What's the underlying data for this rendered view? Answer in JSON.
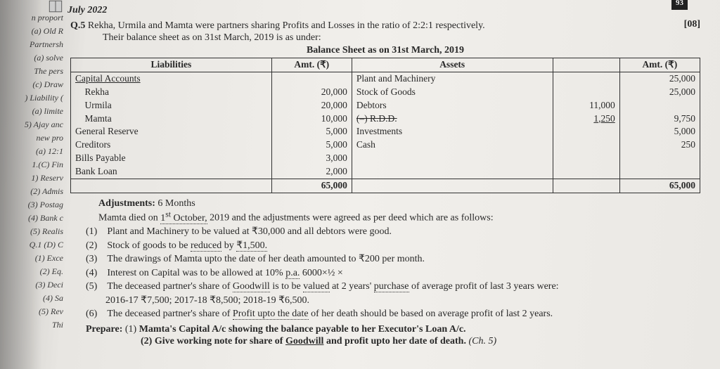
{
  "header": {
    "date": "July 2022",
    "badge": "93",
    "marks": "[08]"
  },
  "question": {
    "num": "Q.5",
    "text_a": "Rekha, Urmila and Mamta were partners sharing Profits and Losses in the ratio of 2:2:1 respectively.",
    "text_b": "Their balance sheet as on 31st March, 2019 is as under:",
    "bs_title": "Balance Sheet as on 31st March, 2019"
  },
  "table": {
    "head": {
      "liab": "Liabilities",
      "amt": "Amt. (₹)",
      "assets": "Assets",
      "amt2": "Amt. (₹)"
    },
    "rows": [
      {
        "l": "Capital Accounts",
        "la": "",
        "a": "Plant and Machinery",
        "aa": "25,000"
      },
      {
        "l": "    Rekha",
        "la": "20,000",
        "a": "Stock of Goods",
        "aa": "25,000"
      },
      {
        "l": "    Urmila",
        "la": "20,000",
        "a": "Debtors",
        "aa_pre": "11,000",
        "aa": ""
      },
      {
        "l": "    Mamta",
        "la": "10,000",
        "a": "(–) R.D.D.",
        "aa_pre": "1,250",
        "aa": "9,750"
      },
      {
        "l": "General Reserve",
        "la": "5,000",
        "a": "Investments",
        "aa": "5,000"
      },
      {
        "l": "Creditors",
        "la": "5,000",
        "a": "Cash",
        "aa": "250"
      },
      {
        "l": "Bills Payable",
        "la": "3,000",
        "a": "",
        "aa": ""
      },
      {
        "l": "Bank Loan",
        "la": "2,000",
        "a": "",
        "aa": ""
      }
    ],
    "total": {
      "l": "",
      "la": "65,000",
      "a": "",
      "aa": "65,000"
    }
  },
  "adjustments": {
    "heading": "Adjustments:",
    "hand": "6 Months",
    "intro": "Mamta died on 1st October, 2019 and the adjustments were agreed as per deed which are as follows:",
    "items": [
      "Plant and Machinery to be valued at ₹30,000 and all debtors were good.",
      "Stock of goods to be reduced by ₹1,500.",
      "The drawings of Mamta upto the date of her death amounted to ₹200 per month.",
      "Interest on Capital was to be allowed at 10% p.a.",
      "The deceased partner's share of Goodwill is to be valued at 2 years' purchase of average profit of last 3 years were:",
      "The deceased partner's share of Profit upto the date of her death should be based on average profit of last 2 years."
    ],
    "profits": "2016-17  ₹7,500;      2017-18  ₹8,500;      2018-19  ₹6,500."
  },
  "prepare": {
    "label": "Prepare:",
    "p1": "(1) Mamta's Capital A/c showing the balance payable to her Executor's Loan A/c.",
    "p2": "(2) Give working note for share of Goodwill and profit upto her date of death. (Ch. 5)"
  },
  "leftcol": [
    "n proport",
    "(a) Old R",
    "Partnersh",
    "(a) solve",
    "The pers",
    "(c) Draw",
    ") Liability (",
    "(a) limite",
    "5) Ajay anc",
    "new pro",
    "(a) 12:1",
    "1.(C) Fin",
    "1) Reserv",
    "(2) Admis",
    "(3) Postag",
    "(4) Bank c",
    "(5) Realis",
    "Q.1 (D) C",
    "(1) Exce",
    "(2) Eq.",
    "(3) Deci",
    "(4) Sa",
    "(5) Rev",
    "  Thi"
  ]
}
